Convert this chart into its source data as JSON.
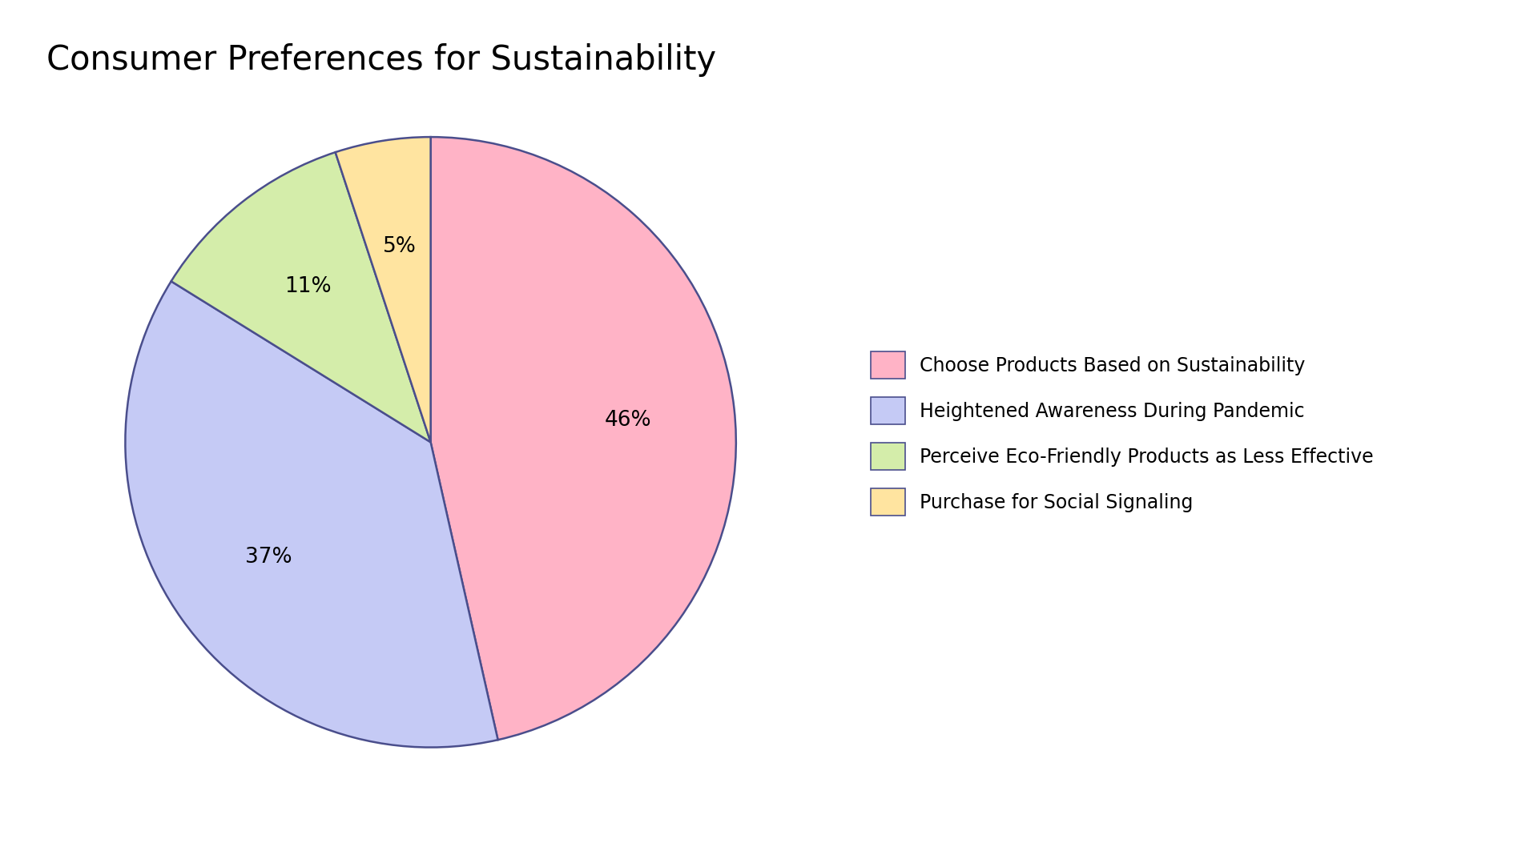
{
  "title": "Consumer Preferences for Sustainability",
  "slices": [
    46,
    37,
    11,
    5
  ],
  "labels": [
    "Choose Products Based on Sustainability",
    "Heightened Awareness During Pandemic",
    "Perceive Eco-Friendly Products as Less Effective",
    "Purchase for Social Signaling"
  ],
  "colors": [
    "#FFB3C6",
    "#C5CAF5",
    "#D4EDAA",
    "#FFE4A0"
  ],
  "edge_color": "#4A4E8C",
  "title_fontsize": 30,
  "legend_fontsize": 17,
  "pct_fontsize": 19,
  "background_color": "#FFFFFF",
  "startangle": 90
}
